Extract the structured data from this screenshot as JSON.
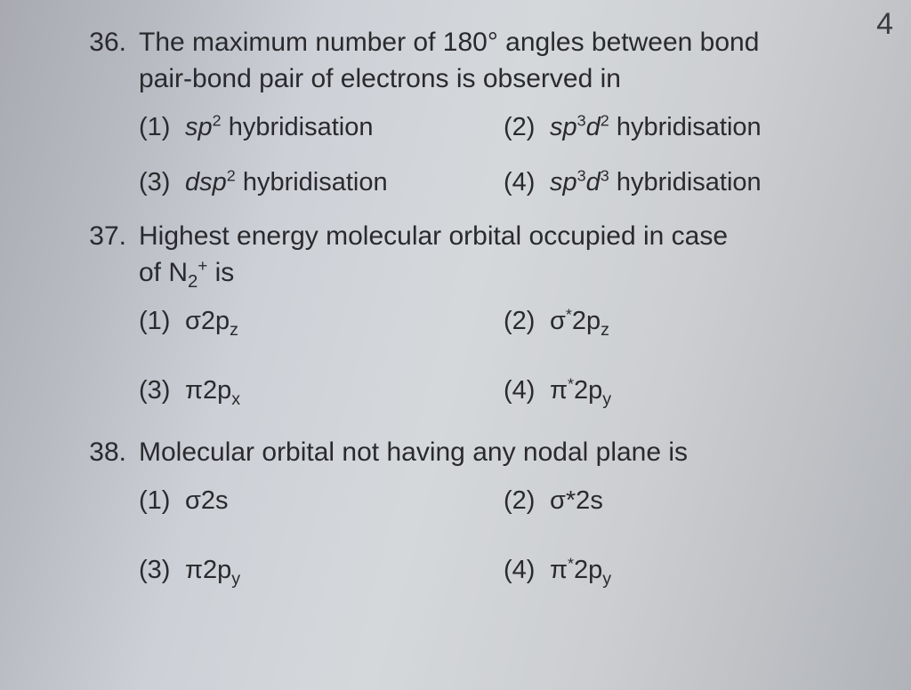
{
  "corner": "4",
  "questions": [
    {
      "number": "36.",
      "line1": "The maximum number of 180° angles between bond",
      "line2": "pair-bond pair of electrons is observed in",
      "options": [
        {
          "n": "(1)",
          "html": "<span class='it'>sp</span><sup>2</sup> hybridisation"
        },
        {
          "n": "(2)",
          "html": "<span class='it'>sp</span><sup>3</sup><span class='it'>d</span><sup>2</sup> hybridisation"
        },
        {
          "n": "(3)",
          "html": "<span class='it'>dsp</span><sup>2</sup> hybridisation"
        },
        {
          "n": "(4)",
          "html": "<span class='it'>sp</span><sup>3</sup><span class='it'>d</span><sup>3</sup> hybridisation"
        }
      ]
    },
    {
      "number": "37.",
      "line1": "Highest energy molecular orbital occupied in case",
      "line2": "of N<sub>2</sub><sup>+</sup> is",
      "options": [
        {
          "n": "(1)",
          "html": "σ2p<sub>z</sub>"
        },
        {
          "n": "(2)",
          "html": "σ<sup>*</sup>2p<sub>z</sub>"
        },
        {
          "n": "(3)",
          "html": "π2p<sub>x</sub>"
        },
        {
          "n": "(4)",
          "html": "π<sup>*</sup>2p<sub>y</sub>"
        }
      ]
    },
    {
      "number": "38.",
      "line1": "Molecular orbital not having any nodal plane is",
      "line2": "",
      "options": [
        {
          "n": "(1)",
          "html": "σ2s"
        },
        {
          "n": "(2)",
          "html": "σ*2s"
        },
        {
          "n": "(3)",
          "html": "π2p<sub>y</sub>"
        },
        {
          "n": "(4)",
          "html": "π<sup>*</sup>2p<sub>y</sub>"
        }
      ]
    }
  ]
}
